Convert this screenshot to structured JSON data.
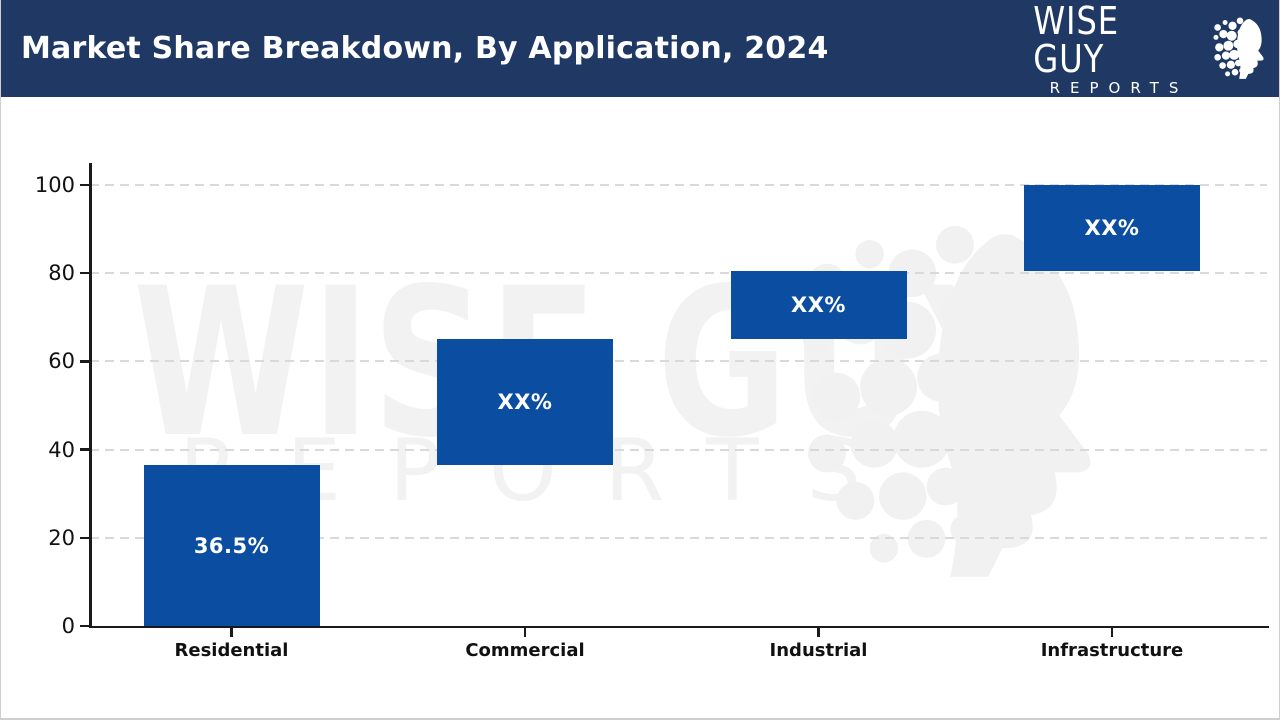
{
  "header": {
    "title": "Market Share Breakdown, By Application, 2024",
    "bg_color": "#1f3864",
    "logo": {
      "line1": "WISE GUY",
      "line2": "REPORTS"
    }
  },
  "watermark": {
    "line1": "WISE GUY",
    "line2": "REPORTS"
  },
  "chart_data": {
    "type": "bar",
    "subtype": "waterfall",
    "title": "Market Share Breakdown, By Application, 2024",
    "categories": [
      "Residential",
      "Commercial",
      "Industrial",
      "Infrastructure"
    ],
    "segments": [
      {
        "category": "Residential",
        "label": "36.5%",
        "start": 0,
        "end": 36.5,
        "value": 36.5
      },
      {
        "category": "Commercial",
        "label": "XX%",
        "start": 36.5,
        "end": 65,
        "value": null
      },
      {
        "category": "Industrial",
        "label": "XX%",
        "start": 65,
        "end": 80.5,
        "value": null
      },
      {
        "category": "Infrastructure",
        "label": "XX%",
        "start": 80.5,
        "end": 100,
        "value": null
      }
    ],
    "yticks": [
      0,
      20,
      40,
      60,
      80,
      100
    ],
    "ylim": [
      0,
      105
    ],
    "xlabel": "",
    "ylabel": "",
    "grid": "horizontal-dashed",
    "legend": "none",
    "colors": {
      "bar": "#0b4da1",
      "grid": "#d9d9d9",
      "axis": "#1a1a1a",
      "bar_label": "#ffffff",
      "tick_label": "#111111"
    }
  }
}
